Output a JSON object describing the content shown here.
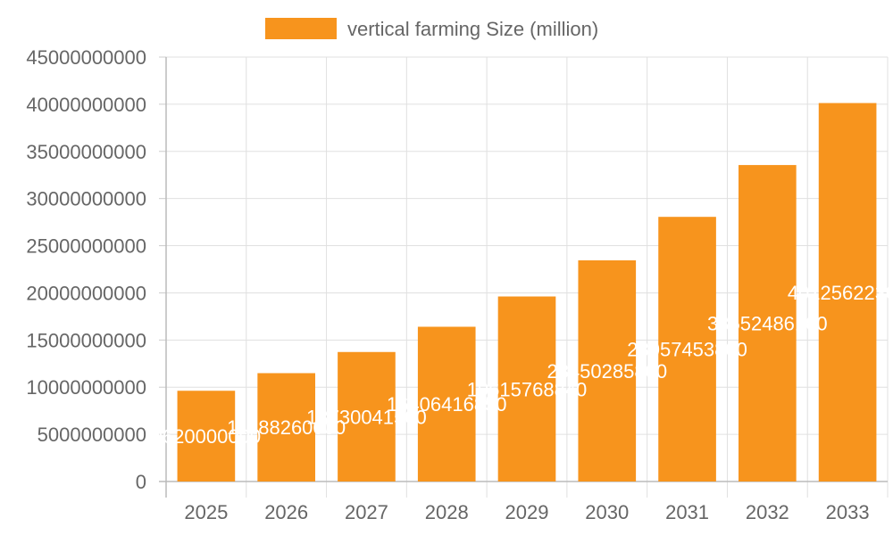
{
  "chart_data": {
    "type": "bar",
    "categories": [
      "2025",
      "2026",
      "2027",
      "2028",
      "2029",
      "2030",
      "2031",
      "2032",
      "2033"
    ],
    "series": [
      {
        "name": "vertical farming Size (million)",
        "values": [
          9620000000,
          11488260000,
          13730041500,
          16406416850,
          19615768840,
          23450285800,
          28057453800,
          33552486100,
          40125622300
        ],
        "data_labels": [
          "9620000000",
          "11488260000",
          "13730041500",
          "16406416850",
          "19615768840",
          "23450285800",
          "28057453800",
          "33552486100",
          "40125622300"
        ],
        "color": "#f7941d"
      }
    ],
    "yticks": [
      "0",
      "5000000000",
      "10000000000",
      "15000000000",
      "20000000000",
      "25000000000",
      "30000000000",
      "35000000000",
      "40000000000",
      "45000000000"
    ],
    "ylim": [
      0,
      45000000000
    ],
    "grid": true,
    "legend_position": "top"
  }
}
